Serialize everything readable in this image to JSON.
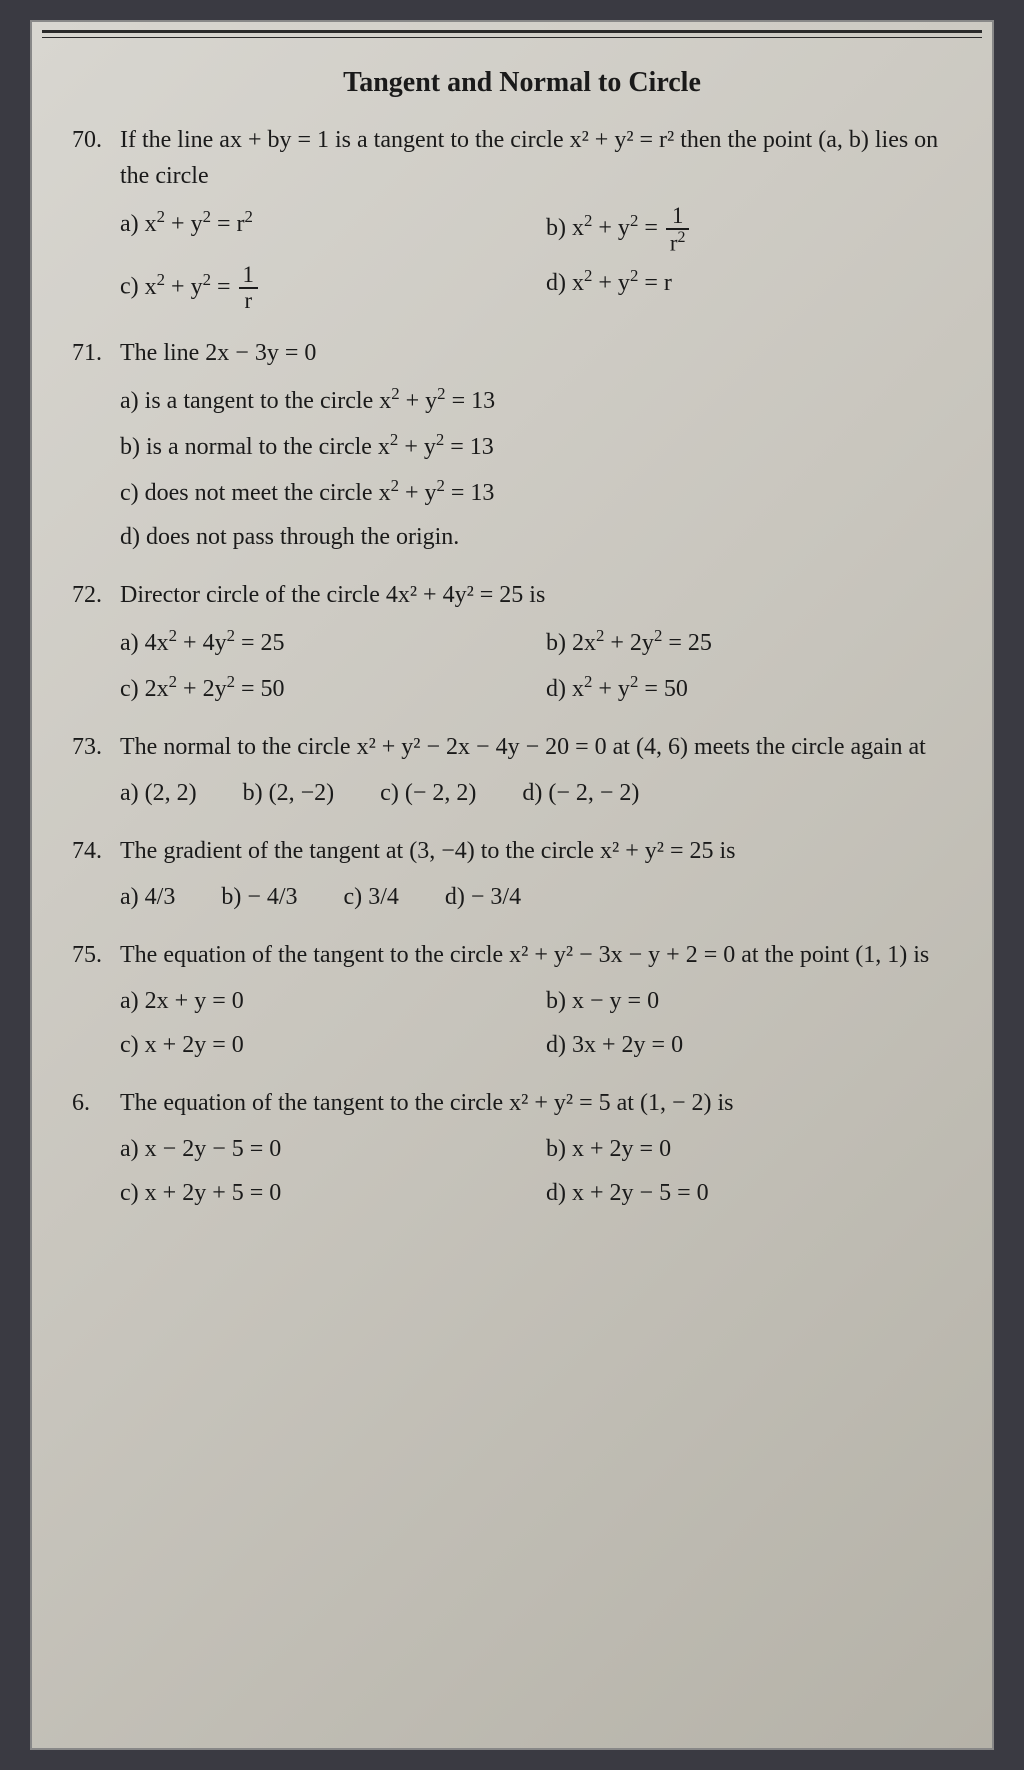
{
  "section_title": "Tangent and Normal to Circle",
  "questions": [
    {
      "num": "70.",
      "text": "If the line ax + by = 1 is a tangent to the circle x² + y² = r² then the point (a, b) lies on the circle",
      "layout": "half",
      "options": [
        {
          "label": "a)",
          "html": "x<sup>2</sup> + y<sup>2</sup> = r<sup>2</sup>"
        },
        {
          "label": "b)",
          "html": "x<sup>2</sup> + y<sup>2</sup> = <span class='frac'><span class='num'>1</span><span class='den'>r<sup>2</sup></span></span>"
        },
        {
          "label": "c)",
          "html": "x<sup>2</sup> + y<sup>2</sup> = <span class='frac'><span class='num'>1</span><span class='den'>r</span></span>"
        },
        {
          "label": "d)",
          "html": "x<sup>2</sup> + y<sup>2</sup> = r"
        }
      ]
    },
    {
      "num": "71.",
      "text": "The line 2x − 3y = 0",
      "layout": "full",
      "options": [
        {
          "label": "a)",
          "html": "is a tangent to the circle x<sup>2</sup> + y<sup>2</sup> = 13"
        },
        {
          "label": "b)",
          "html": "is a normal to the circle x<sup>2</sup> + y<sup>2</sup> = 13"
        },
        {
          "label": "c)",
          "html": "does not meet the circle x<sup>2</sup> + y<sup>2</sup> = 13"
        },
        {
          "label": "d)",
          "html": "does not pass through the origin."
        }
      ]
    },
    {
      "num": "72.",
      "text": "Director circle of the circle 4x² + 4y² = 25 is",
      "layout": "half",
      "options": [
        {
          "label": "a)",
          "html": "4x<sup>2</sup> + 4y<sup>2</sup> = 25"
        },
        {
          "label": "b)",
          "html": "2x<sup>2</sup> + 2y<sup>2</sup> = 25"
        },
        {
          "label": "c)",
          "html": "2x<sup>2</sup> + 2y<sup>2</sup> = 50"
        },
        {
          "label": "d)",
          "html": "x<sup>2</sup> + y<sup>2</sup> = 50"
        }
      ]
    },
    {
      "num": "73.",
      "text": "The normal to the circle x² + y² − 2x − 4y − 20 = 0 at (4, 6) meets the circle again at",
      "layout": "inline",
      "options": [
        {
          "label": "a)",
          "html": "(2, 2)"
        },
        {
          "label": "b)",
          "html": "(2, −2)"
        },
        {
          "label": "c)",
          "html": "(− 2, 2)"
        },
        {
          "label": "d)",
          "html": "(− 2, − 2)"
        }
      ]
    },
    {
      "num": "74.",
      "text": "The gradient of the tangent at (3, −4) to the circle x² + y² = 25 is",
      "layout": "inline",
      "options": [
        {
          "label": "a)",
          "html": "4/3"
        },
        {
          "label": "b)",
          "html": "− 4/3"
        },
        {
          "label": "c)",
          "html": "3/4"
        },
        {
          "label": "d)",
          "html": "− 3/4"
        }
      ]
    },
    {
      "num": "75.",
      "text": "The equation of the tangent to the circle x² + y² − 3x − y + 2 = 0 at the point (1, 1) is",
      "layout": "half",
      "options": [
        {
          "label": "a)",
          "html": "2x + y = 0"
        },
        {
          "label": "b)",
          "html": "x − y = 0"
        },
        {
          "label": "c)",
          "html": "x + 2y = 0"
        },
        {
          "label": "d)",
          "html": "3x + 2y = 0"
        }
      ]
    },
    {
      "num": "6.",
      "text": "The equation of the tangent to the circle x² + y² = 5 at (1, − 2) is",
      "layout": "half",
      "options": [
        {
          "label": "a)",
          "html": "x − 2y − 5 = 0"
        },
        {
          "label": "b)",
          "html": "x + 2y = 0"
        },
        {
          "label": "c)",
          "html": "x + 2y + 5 = 0"
        },
        {
          "label": "d)",
          "html": "x + 2y − 5 = 0"
        }
      ]
    }
  ]
}
